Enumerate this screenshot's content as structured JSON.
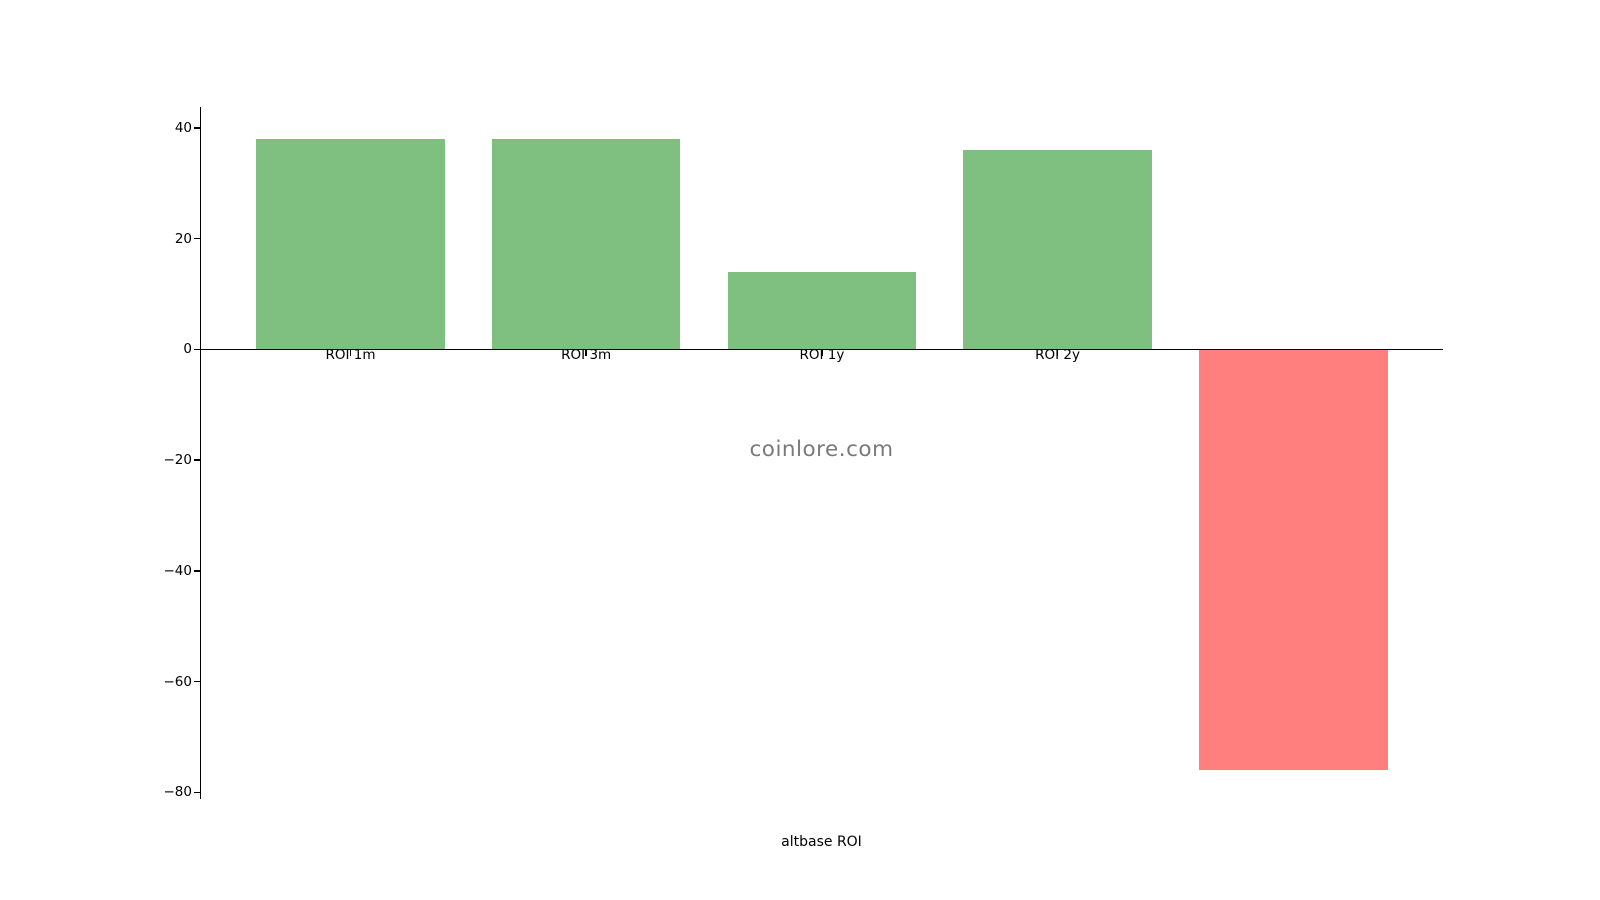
{
  "watermark": "coinlore.com",
  "chart_data": {
    "type": "bar",
    "title": "altbase ROI",
    "xlabel": "",
    "ylabel": "",
    "categories": [
      "ROI 1m",
      "ROI 3m",
      "ROI 1y",
      "ROI 2y",
      ""
    ],
    "values": [
      38,
      38,
      14,
      36,
      -76
    ],
    "yticks": [
      40,
      20,
      0,
      -20,
      -40,
      -60,
      -80
    ],
    "ylim": [
      -81.3,
      43.7
    ],
    "grid": false,
    "legend_position": "none",
    "positive_color": "#7fbf7f",
    "negative_color": "#ff7f7f",
    "axis_color": "#000000",
    "watermark_color": "#7a7a7a",
    "background_color": "#ffffff"
  }
}
